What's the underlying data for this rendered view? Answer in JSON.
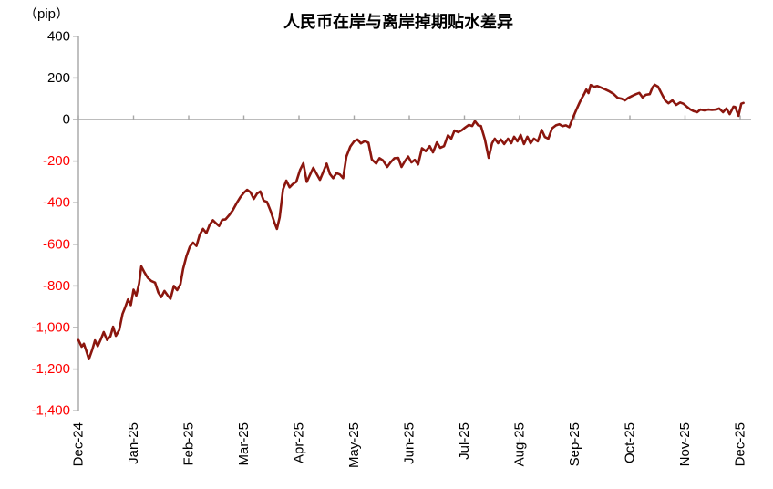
{
  "chart_data": {
    "type": "line",
    "title": "人民币在岸与离岸掉期贴水差异",
    "unit_label": "（pip）",
    "legend": "none",
    "grid": "zero-gridline-only",
    "x_tick_labels": [
      "Dec-24",
      "Jan-25",
      "Feb-25",
      "Mar-25",
      "Apr-25",
      "May-25",
      "Jun-25",
      "Jul-25",
      "Aug-25",
      "Sep-25",
      "Oct-25",
      "Nov-25",
      "Dec-25"
    ],
    "x_encoding": "months since Dec-24 tick (0 = Dec-24, 1 = Jan-25, ... 12 = Dec-25)",
    "ylim": [
      -1400,
      400
    ],
    "y_ticks": [
      {
        "label": "400",
        "value": 400
      },
      {
        "label": "200",
        "value": 200
      },
      {
        "label": "0",
        "value": 0
      },
      {
        "label": "-200",
        "value": -200
      },
      {
        "label": "-400",
        "value": -400
      },
      {
        "label": "-600",
        "value": -600
      },
      {
        "label": "-800",
        "value": -800
      },
      {
        "label": "-1,000",
        "value": -1000
      },
      {
        "label": "-1,200",
        "value": -1200
      },
      {
        "label": "-1,400",
        "value": -1400
      }
    ],
    "tick_label_colors": {
      "negative": "#FF0000",
      "nonnegative": "#000000"
    },
    "axis_color": "#A6A6A6",
    "series": [
      {
        "color": "#8B160E",
        "points": [
          [
            0.0,
            -1060
          ],
          [
            0.06,
            -1092
          ],
          [
            0.1,
            -1078
          ],
          [
            0.14,
            -1110
          ],
          [
            0.19,
            -1152
          ],
          [
            0.25,
            -1108
          ],
          [
            0.3,
            -1062
          ],
          [
            0.35,
            -1090
          ],
          [
            0.41,
            -1055
          ],
          [
            0.46,
            -1022
          ],
          [
            0.52,
            -1060
          ],
          [
            0.58,
            -1042
          ],
          [
            0.63,
            -996
          ],
          [
            0.68,
            -1040
          ],
          [
            0.74,
            -1012
          ],
          [
            0.8,
            -935
          ],
          [
            0.85,
            -902
          ],
          [
            0.9,
            -865
          ],
          [
            0.95,
            -892
          ],
          [
            1.0,
            -818
          ],
          [
            1.05,
            -846
          ],
          [
            1.1,
            -788
          ],
          [
            1.14,
            -706
          ],
          [
            1.2,
            -736
          ],
          [
            1.26,
            -762
          ],
          [
            1.32,
            -776
          ],
          [
            1.39,
            -784
          ],
          [
            1.45,
            -832
          ],
          [
            1.5,
            -854
          ],
          [
            1.56,
            -824
          ],
          [
            1.62,
            -846
          ],
          [
            1.67,
            -862
          ],
          [
            1.73,
            -800
          ],
          [
            1.79,
            -820
          ],
          [
            1.85,
            -792
          ],
          [
            1.9,
            -718
          ],
          [
            1.96,
            -656
          ],
          [
            2.02,
            -612
          ],
          [
            2.08,
            -592
          ],
          [
            2.14,
            -608
          ],
          [
            2.2,
            -554
          ],
          [
            2.26,
            -526
          ],
          [
            2.32,
            -546
          ],
          [
            2.38,
            -506
          ],
          [
            2.44,
            -484
          ],
          [
            2.5,
            -500
          ],
          [
            2.55,
            -512
          ],
          [
            2.61,
            -482
          ],
          [
            2.67,
            -480
          ],
          [
            2.74,
            -458
          ],
          [
            2.8,
            -436
          ],
          [
            2.87,
            -402
          ],
          [
            2.94,
            -372
          ],
          [
            3.0,
            -352
          ],
          [
            3.06,
            -338
          ],
          [
            3.12,
            -350
          ],
          [
            3.18,
            -382
          ],
          [
            3.24,
            -356
          ],
          [
            3.3,
            -346
          ],
          [
            3.36,
            -390
          ],
          [
            3.42,
            -396
          ],
          [
            3.49,
            -442
          ],
          [
            3.55,
            -492
          ],
          [
            3.6,
            -526
          ],
          [
            3.65,
            -470
          ],
          [
            3.71,
            -336
          ],
          [
            3.77,
            -294
          ],
          [
            3.83,
            -326
          ],
          [
            3.89,
            -310
          ],
          [
            3.95,
            -300
          ],
          [
            4.02,
            -242
          ],
          [
            4.08,
            -210
          ],
          [
            4.14,
            -300
          ],
          [
            4.2,
            -266
          ],
          [
            4.26,
            -232
          ],
          [
            4.32,
            -262
          ],
          [
            4.38,
            -290
          ],
          [
            4.44,
            -252
          ],
          [
            4.5,
            -212
          ],
          [
            4.56,
            -262
          ],
          [
            4.62,
            -282
          ],
          [
            4.68,
            -258
          ],
          [
            4.74,
            -264
          ],
          [
            4.8,
            -282
          ],
          [
            4.86,
            -178
          ],
          [
            4.93,
            -130
          ],
          [
            5.0,
            -105
          ],
          [
            5.06,
            -96
          ],
          [
            5.12,
            -115
          ],
          [
            5.19,
            -104
          ],
          [
            5.26,
            -112
          ],
          [
            5.32,
            -192
          ],
          [
            5.4,
            -212
          ],
          [
            5.46,
            -186
          ],
          [
            5.52,
            -196
          ],
          [
            5.6,
            -228
          ],
          [
            5.66,
            -206
          ],
          [
            5.73,
            -186
          ],
          [
            5.8,
            -184
          ],
          [
            5.86,
            -228
          ],
          [
            5.92,
            -200
          ],
          [
            5.98,
            -178
          ],
          [
            6.04,
            -206
          ],
          [
            6.1,
            -194
          ],
          [
            6.16,
            -216
          ],
          [
            6.23,
            -138
          ],
          [
            6.3,
            -152
          ],
          [
            6.37,
            -128
          ],
          [
            6.43,
            -158
          ],
          [
            6.5,
            -110
          ],
          [
            6.56,
            -136
          ],
          [
            6.63,
            -128
          ],
          [
            6.7,
            -76
          ],
          [
            6.76,
            -92
          ],
          [
            6.82,
            -53
          ],
          [
            6.89,
            -61
          ],
          [
            6.95,
            -52
          ],
          [
            7.01,
            -39
          ],
          [
            7.08,
            -26
          ],
          [
            7.14,
            -31
          ],
          [
            7.19,
            -8
          ],
          [
            7.25,
            -28
          ],
          [
            7.3,
            -31
          ],
          [
            7.37,
            -95
          ],
          [
            7.44,
            -184
          ],
          [
            7.5,
            -114
          ],
          [
            7.55,
            -92
          ],
          [
            7.61,
            -114
          ],
          [
            7.66,
            -96
          ],
          [
            7.72,
            -118
          ],
          [
            7.79,
            -92
          ],
          [
            7.85,
            -114
          ],
          [
            7.9,
            -83
          ],
          [
            7.96,
            -105
          ],
          [
            8.02,
            -74
          ],
          [
            8.08,
            -118
          ],
          [
            8.14,
            -83
          ],
          [
            8.2,
            -114
          ],
          [
            8.26,
            -92
          ],
          [
            8.33,
            -105
          ],
          [
            8.4,
            -50
          ],
          [
            8.46,
            -84
          ],
          [
            8.52,
            -92
          ],
          [
            8.59,
            -42
          ],
          [
            8.66,
            -28
          ],
          [
            8.72,
            -23
          ],
          [
            8.78,
            -32
          ],
          [
            8.84,
            -28
          ],
          [
            8.9,
            -37
          ],
          [
            8.96,
            4
          ],
          [
            9.03,
            47
          ],
          [
            9.09,
            82
          ],
          [
            9.13,
            104
          ],
          [
            9.17,
            122
          ],
          [
            9.21,
            144
          ],
          [
            9.25,
            127
          ],
          [
            9.29,
            166
          ],
          [
            9.35,
            157
          ],
          [
            9.41,
            161
          ],
          [
            9.48,
            153
          ],
          [
            9.56,
            144
          ],
          [
            9.63,
            135
          ],
          [
            9.7,
            124
          ],
          [
            9.78,
            104
          ],
          [
            9.85,
            100
          ],
          [
            9.91,
            92
          ],
          [
            9.97,
            104
          ],
          [
            10.04,
            113
          ],
          [
            10.11,
            122
          ],
          [
            10.17,
            128
          ],
          [
            10.23,
            106
          ],
          [
            10.29,
            119
          ],
          [
            10.36,
            122
          ],
          [
            10.41,
            154
          ],
          [
            10.45,
            167
          ],
          [
            10.51,
            158
          ],
          [
            10.58,
            122
          ],
          [
            10.64,
            92
          ],
          [
            10.7,
            78
          ],
          [
            10.77,
            92
          ],
          [
            10.84,
            70
          ],
          [
            10.91,
            82
          ],
          [
            10.97,
            76
          ],
          [
            11.04,
            60
          ],
          [
            11.1,
            48
          ],
          [
            11.16,
            40
          ],
          [
            11.22,
            35
          ],
          [
            11.28,
            48
          ],
          [
            11.35,
            44
          ],
          [
            11.42,
            48
          ],
          [
            11.49,
            46
          ],
          [
            11.56,
            48
          ],
          [
            11.62,
            53
          ],
          [
            11.69,
            35
          ],
          [
            11.75,
            53
          ],
          [
            11.81,
            26
          ],
          [
            11.88,
            62
          ],
          [
            11.91,
            60
          ],
          [
            11.97,
            18
          ],
          [
            12.02,
            76
          ],
          [
            12.06,
            80
          ]
        ]
      }
    ]
  }
}
